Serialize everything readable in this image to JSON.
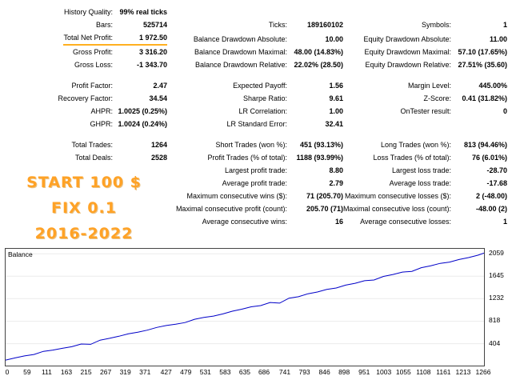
{
  "report": {
    "watermark": {
      "lines": [
        "START 100 $",
        "FIX 0.1",
        "2016-2022"
      ],
      "color": "#FFA226"
    },
    "accent_underline_color": "#FFB020",
    "rows": [
      {
        "cells": [
          {
            "l": "History Quality:",
            "v": "99% real ticks"
          },
          null,
          null
        ]
      },
      {
        "cells": [
          {
            "l": "Bars:",
            "v": "525714"
          },
          {
            "l": "Ticks:",
            "v": "189160102"
          },
          {
            "l": "Symbols:",
            "v": "1"
          }
        ]
      },
      {
        "cells": [
          {
            "l": "Total Net Profit:",
            "v": "1 972.50",
            "u": true
          },
          {
            "l": "Balance Drawdown Absolute:",
            "v": "10.00"
          },
          {
            "l": "Equity Drawdown Absolute:",
            "v": "11.00"
          }
        ]
      },
      {
        "cells": [
          {
            "l": "Gross Profit:",
            "v": "3 316.20"
          },
          {
            "l": "Balance Drawdown Maximal:",
            "v": "48.00 (14.83%)"
          },
          {
            "l": "Equity Drawdown Maximal:",
            "v": "57.10 (17.65%)"
          }
        ]
      },
      {
        "cells": [
          {
            "l": "Gross Loss:",
            "v": "-1 343.70"
          },
          {
            "l": "Balance Drawdown Relative:",
            "v": "22.02% (28.50)"
          },
          {
            "l": "Equity Drawdown Relative:",
            "v": "27.51% (35.60)"
          }
        ]
      },
      {
        "spacer": true
      },
      {
        "cells": [
          {
            "l": "Profit Factor:",
            "v": "2.47"
          },
          {
            "l": "Expected Payoff:",
            "v": "1.56"
          },
          {
            "l": "Margin Level:",
            "v": "445.00%"
          }
        ]
      },
      {
        "cells": [
          {
            "l": "Recovery Factor:",
            "v": "34.54"
          },
          {
            "l": "Sharpe Ratio:",
            "v": "9.61"
          },
          {
            "l": "Z-Score:",
            "v": "0.41 (31.82%)"
          }
        ]
      },
      {
        "cells": [
          {
            "l": "AHPR:",
            "v": "1.0025 (0.25%)"
          },
          {
            "l": "LR Correlation:",
            "v": "1.00"
          },
          {
            "l": "OnTester result:",
            "v": "0"
          }
        ]
      },
      {
        "cells": [
          {
            "l": "GHPR:",
            "v": "1.0024 (0.24%)"
          },
          {
            "l": "LR Standard Error:",
            "v": "32.41"
          },
          null
        ]
      },
      {
        "spacer": true
      },
      {
        "cells": [
          {
            "l": "Total Trades:",
            "v": "1264"
          },
          {
            "l": "Short Trades (won %):",
            "v": "451 (93.13%)"
          },
          {
            "l": "Long Trades (won %):",
            "v": "813 (94.46%)"
          }
        ]
      },
      {
        "cells": [
          {
            "l": "Total Deals:",
            "v": "2528"
          },
          {
            "l": "Profit Trades (% of total):",
            "v": "1188 (93.99%)"
          },
          {
            "l": "Loss Trades (% of total):",
            "v": "76 (6.01%)"
          }
        ]
      },
      {
        "cells": [
          null,
          {
            "l": "Largest profit trade:",
            "v": "8.80"
          },
          {
            "l": "Largest loss trade:",
            "v": "-28.70"
          }
        ]
      },
      {
        "cells": [
          null,
          {
            "l": "Average profit trade:",
            "v": "2.79"
          },
          {
            "l": "Average loss trade:",
            "v": "-17.68"
          }
        ]
      },
      {
        "cells": [
          null,
          {
            "l": "Maximum consecutive wins ($):",
            "v": "71 (205.70)"
          },
          {
            "l": "Maximum consecutive losses ($):",
            "v": "2 (-48.00)"
          }
        ]
      },
      {
        "cells": [
          null,
          {
            "l": "Maximal consecutive profit (count):",
            "v": "205.70 (71)"
          },
          {
            "l": "Maximal consecutive loss (count):",
            "v": "-48.00 (2)"
          }
        ]
      },
      {
        "cells": [
          null,
          {
            "l": "Average consecutive wins:",
            "v": "16"
          },
          {
            "l": "Average consecutive losses:",
            "v": "1"
          }
        ]
      }
    ]
  },
  "chart_data": {
    "type": "line",
    "title": "Balance",
    "legend_position": "top-left",
    "grid": "horizontal-light",
    "line_color": "#0000C8",
    "xlim": [
      0,
      1266
    ],
    "ylim": [
      0,
      2150
    ],
    "x_ticks": [
      0,
      59,
      111,
      163,
      215,
      267,
      319,
      371,
      427,
      479,
      531,
      583,
      635,
      686,
      741,
      793,
      846,
      898,
      951,
      1003,
      1055,
      1108,
      1161,
      1213,
      1266
    ],
    "y_ticks": [
      404,
      818,
      1232,
      1645,
      2059
    ],
    "series": [
      {
        "name": "Balance",
        "x": [
          0,
          25,
          50,
          75,
          100,
          125,
          150,
          175,
          200,
          225,
          250,
          275,
          300,
          325,
          350,
          375,
          400,
          425,
          450,
          475,
          500,
          525,
          550,
          575,
          600,
          625,
          650,
          675,
          700,
          725,
          750,
          775,
          800,
          825,
          850,
          875,
          900,
          925,
          950,
          975,
          1000,
          1025,
          1050,
          1075,
          1100,
          1125,
          1150,
          1175,
          1200,
          1225,
          1250,
          1266
        ],
        "values": [
          100,
          142,
          178,
          205,
          262,
          285,
          318,
          348,
          398,
          392,
          468,
          502,
          540,
          585,
          615,
          652,
          702,
          738,
          762,
          792,
          852,
          888,
          912,
          952,
          1002,
          1038,
          1082,
          1105,
          1162,
          1150,
          1242,
          1268,
          1322,
          1355,
          1402,
          1428,
          1482,
          1515,
          1562,
          1575,
          1642,
          1678,
          1722,
          1735,
          1802,
          1838,
          1882,
          1905,
          1952,
          1988,
          2032,
          2072
        ]
      }
    ]
  }
}
